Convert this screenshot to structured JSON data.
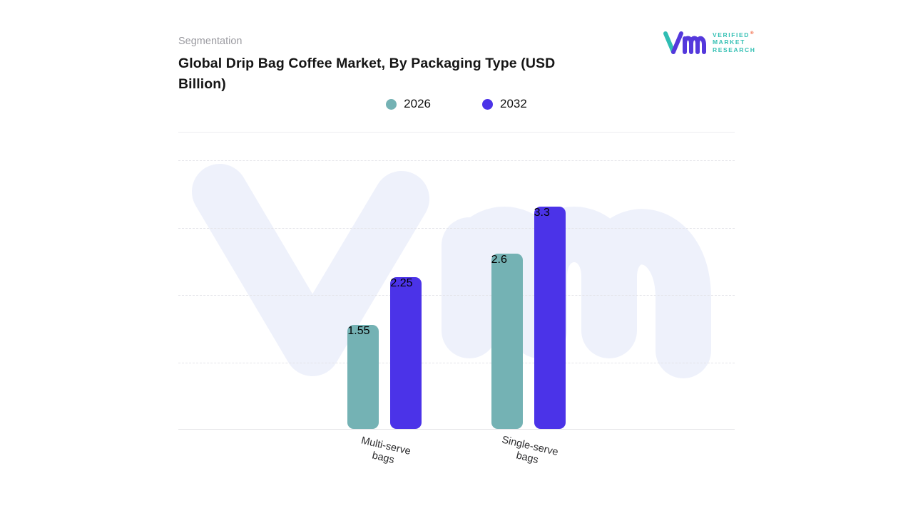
{
  "header": {
    "eyebrow": "Segmentation",
    "title_line1": "Global Drip Bag Coffee Market, By Packaging Type (USD",
    "title_line2": "Billion)"
  },
  "logo": {
    "line1": "VERIFIED",
    "line2": "MARKET",
    "line3": "RESEARCH",
    "registered": "®",
    "mark_teal": "#2fbdb3",
    "mark_purple": "#5438dc",
    "text_color": "#35c0b4"
  },
  "chart_data": {
    "type": "bar",
    "title": "Global Drip Bag Coffee Market, By Packaging Type (USD Billion)",
    "unit": "USD Billion",
    "categories": [
      "Multi-serve\nbags",
      "Single-serve\nbags"
    ],
    "series": [
      {
        "name": "2026",
        "color": "#74b2b4",
        "values": [
          1.55,
          2.6
        ]
      },
      {
        "name": "2032",
        "color": "#4b33e8",
        "values": [
          2.25,
          3.3
        ]
      }
    ],
    "ylim": [
      0,
      4
    ],
    "y_axis_visible": false,
    "grid": "horizontal-dashed",
    "legend_position": "top",
    "group_centers_fraction": [
      0.371,
      0.629
    ]
  },
  "watermark_text": "vmr"
}
